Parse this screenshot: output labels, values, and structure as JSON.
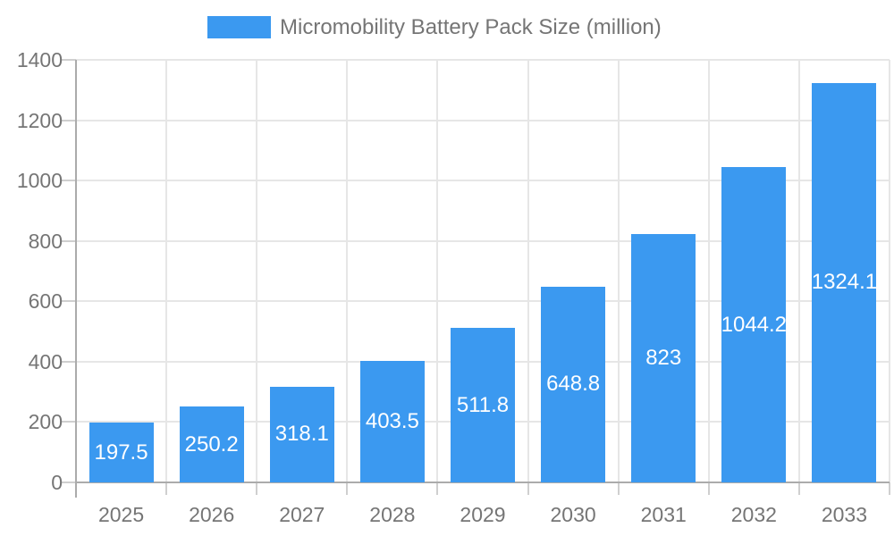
{
  "chart_data": {
    "type": "bar",
    "title": "Micromobility Battery Pack Size (million)",
    "legend": {
      "label": "Micromobility Battery Pack Size (million)",
      "position": "top-center"
    },
    "categories": [
      "2025",
      "2026",
      "2027",
      "2028",
      "2029",
      "2030",
      "2031",
      "2032",
      "2033"
    ],
    "values": [
      197.5,
      250.2,
      318.1,
      403.5,
      511.8,
      648.8,
      823,
      1044.2,
      1324.1
    ],
    "value_labels": [
      "197.5",
      "250.2",
      "318.1",
      "403.5",
      "511.8",
      "648.8",
      "823",
      "1044.2",
      "1324.1"
    ],
    "xlabel": "",
    "ylabel": "",
    "ylim": [
      0,
      1400
    ],
    "ytick_step": 200,
    "yticks": [
      0,
      200,
      400,
      600,
      800,
      1000,
      1200,
      1400
    ],
    "grid": true,
    "value_labels_inside_bars": true,
    "colors": {
      "bar": "#3B99F0",
      "axis_text": "#757575",
      "value_text": "#FFFFFF",
      "gridline": "#E6E6E6",
      "axis_line": "#ABABAB",
      "tick_mark": "#CFCFCF",
      "background": "#FFFFFF"
    }
  }
}
